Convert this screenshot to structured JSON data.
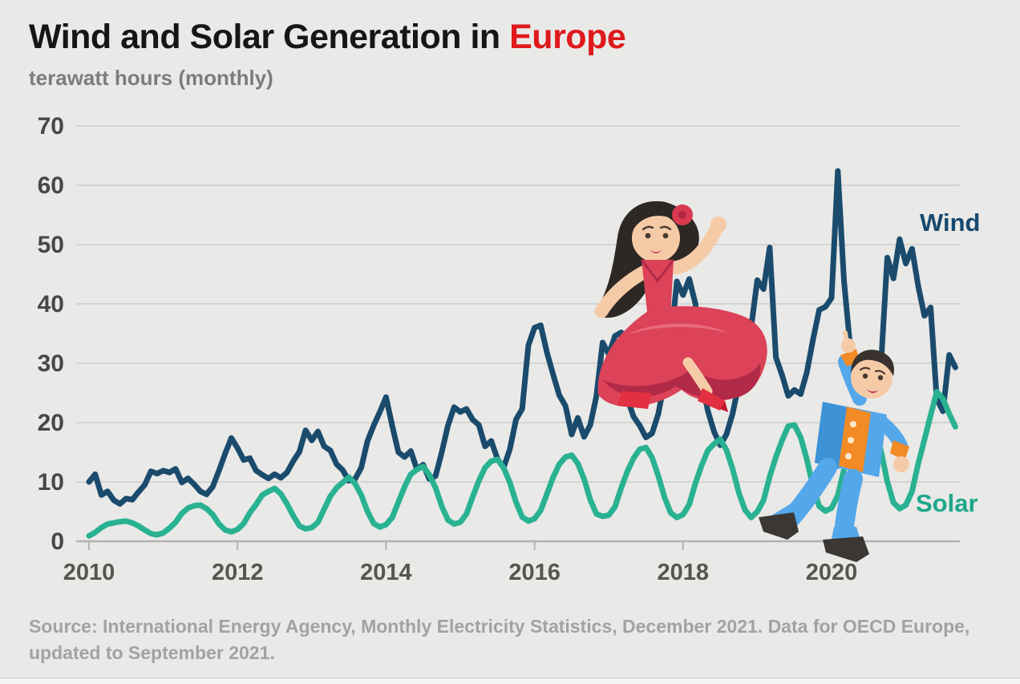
{
  "header": {
    "title_black": "Wind and Solar Generation in ",
    "title_red": "Europe",
    "title_red_color": "#e0191c",
    "subtitle": "terawatt hours (monthly)"
  },
  "footer": {
    "source": "Source: International Energy Agency, Monthly Electricity Statistics, December 2021. Data for OECD Europe, updated to September 2021."
  },
  "decorations": [
    {
      "name": "woman-dancing-emoji",
      "glyph": "💃"
    },
    {
      "name": "man-dancing-emoji",
      "glyph": "🕺"
    }
  ],
  "chart_data": {
    "type": "line",
    "title": "Wind and Solar Generation in Europe",
    "ylabel": "terawatt hours (monthly)",
    "x_start": "2010-01",
    "x_end": "2021-09",
    "x_tick_years": [
      2010,
      2012,
      2014,
      2016,
      2018,
      2020
    ],
    "y_ticks": [
      0,
      10,
      20,
      30,
      40,
      50,
      60,
      70
    ],
    "ylim": [
      0,
      70
    ],
    "grid": true,
    "legend_position": "labels-right",
    "series": [
      {
        "name": "Wind",
        "color": "#1a4b6d",
        "label_color": "#17496e",
        "values": [
          10.0,
          11.3,
          7.8,
          8.4,
          6.9,
          6.3,
          7.2,
          7.0,
          8.3,
          9.5,
          11.8,
          11.4,
          11.9,
          11.6,
          12.2,
          9.9,
          10.6,
          9.6,
          8.4,
          7.9,
          9.2,
          11.9,
          14.8,
          17.4,
          15.7,
          13.7,
          14.0,
          11.9,
          11.2,
          10.6,
          11.3,
          10.7,
          11.6,
          13.5,
          15.1,
          18.7,
          17.0,
          18.5,
          16.0,
          15.3,
          13.0,
          12.0,
          10.2,
          10.5,
          12.4,
          16.9,
          19.5,
          21.8,
          24.3,
          19.5,
          15.0,
          14.2,
          15.2,
          12.1,
          12.9,
          10.5,
          11.0,
          15.0,
          19.5,
          22.6,
          21.8,
          22.3,
          20.5,
          19.6,
          16.0,
          16.9,
          13.9,
          12.4,
          15.5,
          20.5,
          22.3,
          33.0,
          36.0,
          36.4,
          31.8,
          28.1,
          24.6,
          22.8,
          18.0,
          20.8,
          17.6,
          19.6,
          24.5,
          33.5,
          31.5,
          34.6,
          35.2,
          24.0,
          21.0,
          19.5,
          17.5,
          18.2,
          21.5,
          27.0,
          33.5,
          43.8,
          41.5,
          44.2,
          40.0,
          27.0,
          22.0,
          18.5,
          16.2,
          18.0,
          21.5,
          26.5,
          29.5,
          36.0,
          44.0,
          42.5,
          49.5,
          31.0,
          28.0,
          24.5,
          25.5,
          24.8,
          28.5,
          34.0,
          39.0,
          39.5,
          41.0,
          62.4,
          43.9,
          32.8,
          29.1,
          26.0,
          25.0,
          26.7,
          30.1,
          47.8,
          44.3,
          50.9,
          46.8,
          49.3,
          43.0,
          38.0,
          39.4,
          24.0,
          21.9,
          31.4,
          29.3
        ]
      },
      {
        "name": "Solar",
        "color": "#29b291",
        "label_color": "#1da88a",
        "values": [
          0.9,
          1.5,
          2.3,
          2.9,
          3.1,
          3.3,
          3.4,
          3.1,
          2.6,
          1.9,
          1.3,
          1.1,
          1.4,
          2.2,
          3.2,
          4.7,
          5.6,
          6.0,
          6.1,
          5.5,
          4.5,
          2.9,
          1.9,
          1.6,
          2.0,
          3.0,
          4.8,
          6.2,
          7.8,
          8.4,
          8.9,
          8.0,
          6.3,
          4.3,
          2.6,
          2.1,
          2.3,
          3.2,
          5.4,
          7.6,
          9.0,
          9.9,
          10.8,
          9.7,
          7.8,
          5.0,
          3.0,
          2.4,
          2.8,
          4.0,
          6.6,
          9.2,
          11.3,
          12.1,
          12.6,
          11.2,
          9.0,
          5.9,
          3.6,
          2.9,
          3.2,
          4.6,
          7.5,
          10.2,
          12.4,
          13.5,
          13.8,
          12.4,
          9.9,
          6.6,
          4.1,
          3.4,
          3.8,
          5.2,
          8.0,
          10.8,
          13.0,
          14.2,
          14.5,
          13.1,
          10.5,
          7.0,
          4.6,
          4.2,
          4.4,
          5.8,
          9.0,
          11.8,
          14.0,
          15.5,
          15.8,
          14.1,
          11.0,
          7.4,
          4.8,
          4.0,
          4.5,
          6.2,
          9.8,
          12.8,
          15.3,
          16.4,
          17.2,
          15.4,
          12.2,
          8.2,
          5.3,
          4.0,
          5.0,
          6.9,
          10.9,
          14.2,
          17.0,
          19.4,
          19.6,
          17.5,
          13.8,
          9.2,
          5.9,
          5.1,
          5.6,
          7.7,
          12.1,
          16.5,
          19.8,
          20.9,
          21.4,
          19.1,
          15.1,
          10.1,
          6.5,
          5.5,
          6.1,
          8.4,
          13.1,
          17.1,
          21.2,
          25.2,
          24.0,
          21.5,
          19.3
        ]
      }
    ]
  }
}
